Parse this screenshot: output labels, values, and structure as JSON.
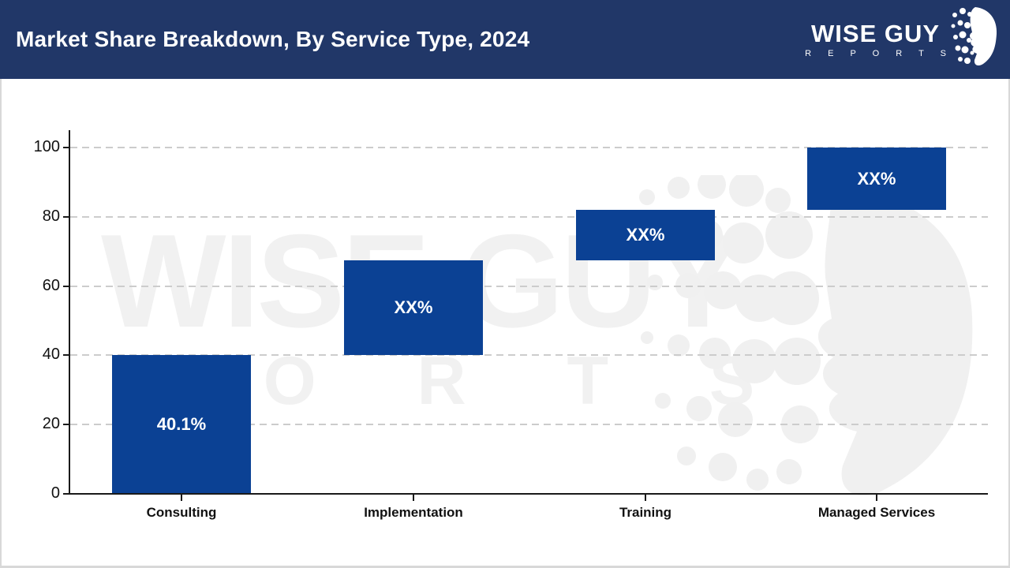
{
  "header": {
    "title": "Market Share Breakdown, By Service Type, 2024",
    "logo": {
      "line1": "WISE GUY",
      "line2": "R E P O R T S"
    }
  },
  "watermark": {
    "line1": "WISE GUY",
    "line2": "P O R T S"
  },
  "chart_data": {
    "type": "bar",
    "subtype": "floating-waterfall",
    "title": "Market Share Breakdown, By Service Type, 2024",
    "categories": [
      "Consulting",
      "Implementation",
      "Training",
      "Managed Services"
    ],
    "segments": [
      {
        "category": "Consulting",
        "start": 0,
        "end": 40.1,
        "label": "40.1%"
      },
      {
        "category": "Implementation",
        "start": 40.1,
        "end": 67.5,
        "label": "XX%"
      },
      {
        "category": "Training",
        "start": 67.5,
        "end": 82.0,
        "label": "XX%"
      },
      {
        "category": "Managed Services",
        "start": 82.0,
        "end": 100,
        "label": "XX%"
      }
    ],
    "yticks": [
      0,
      20,
      40,
      60,
      80,
      100
    ],
    "ylim": [
      0,
      105
    ],
    "xlabel": "",
    "ylabel": "",
    "grid": "horizontal-dashed",
    "legend": "none",
    "bar_color": "#0b4194",
    "bar_label_color": "#ffffff",
    "axis_color": "#1a1a1a",
    "grid_color": "#cccccc",
    "header_color": "#213768",
    "watermark_color": "#f1f1f1"
  }
}
